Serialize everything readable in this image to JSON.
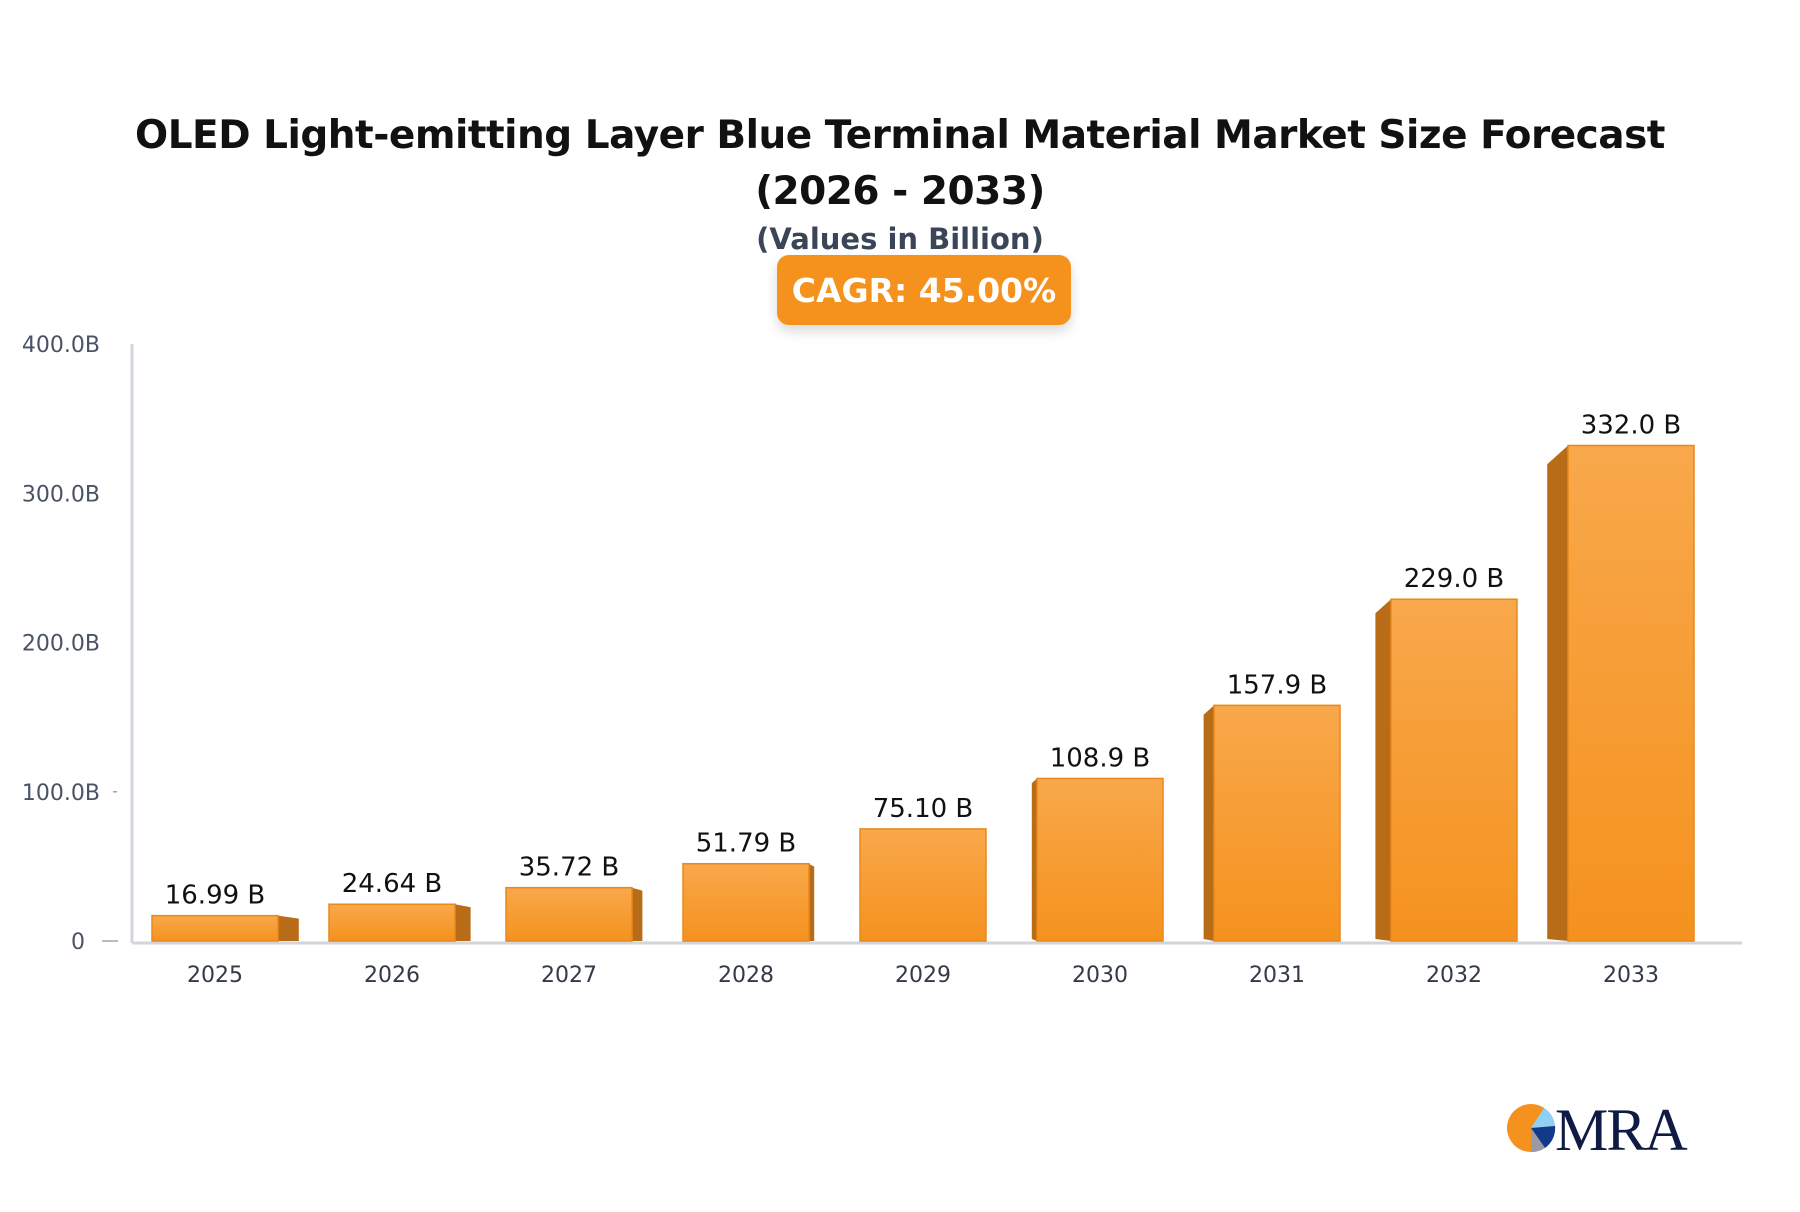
{
  "chart_data": {
    "type": "bar",
    "title": "OLED Light-emitting Layer Blue Terminal Material Market Size Forecast (2026 - 2033)",
    "subtitle": "(Values in Billion)",
    "badge": "CAGR: 45.00%",
    "categories": [
      "2025",
      "2026",
      "2027",
      "2028",
      "2029",
      "2030",
      "2031",
      "2032",
      "2033"
    ],
    "values": [
      16.99,
      24.64,
      35.72,
      51.79,
      75.1,
      108.9,
      157.9,
      229.0,
      332.0
    ],
    "data_labels": [
      "16.99 B",
      "24.64 B",
      "35.72 B",
      "51.79 B",
      "75.10 B",
      "108.9 B",
      "157.9 B",
      "229.0 B",
      "332.0 B"
    ],
    "ylim": [
      0,
      400
    ],
    "yticks": [
      0,
      100,
      200,
      300,
      400
    ],
    "ytick_labels": [
      "0",
      "100.0B",
      "200.0B",
      "300.0B",
      "400.0B"
    ],
    "grid": false,
    "colors": {
      "bar": "#f5921e",
      "bar_top": "#f8a84b",
      "bar_side": "#b86c18",
      "axis": "#d3d5dc",
      "badge": "#f5921e"
    }
  },
  "logo": {
    "text": "MRA"
  }
}
